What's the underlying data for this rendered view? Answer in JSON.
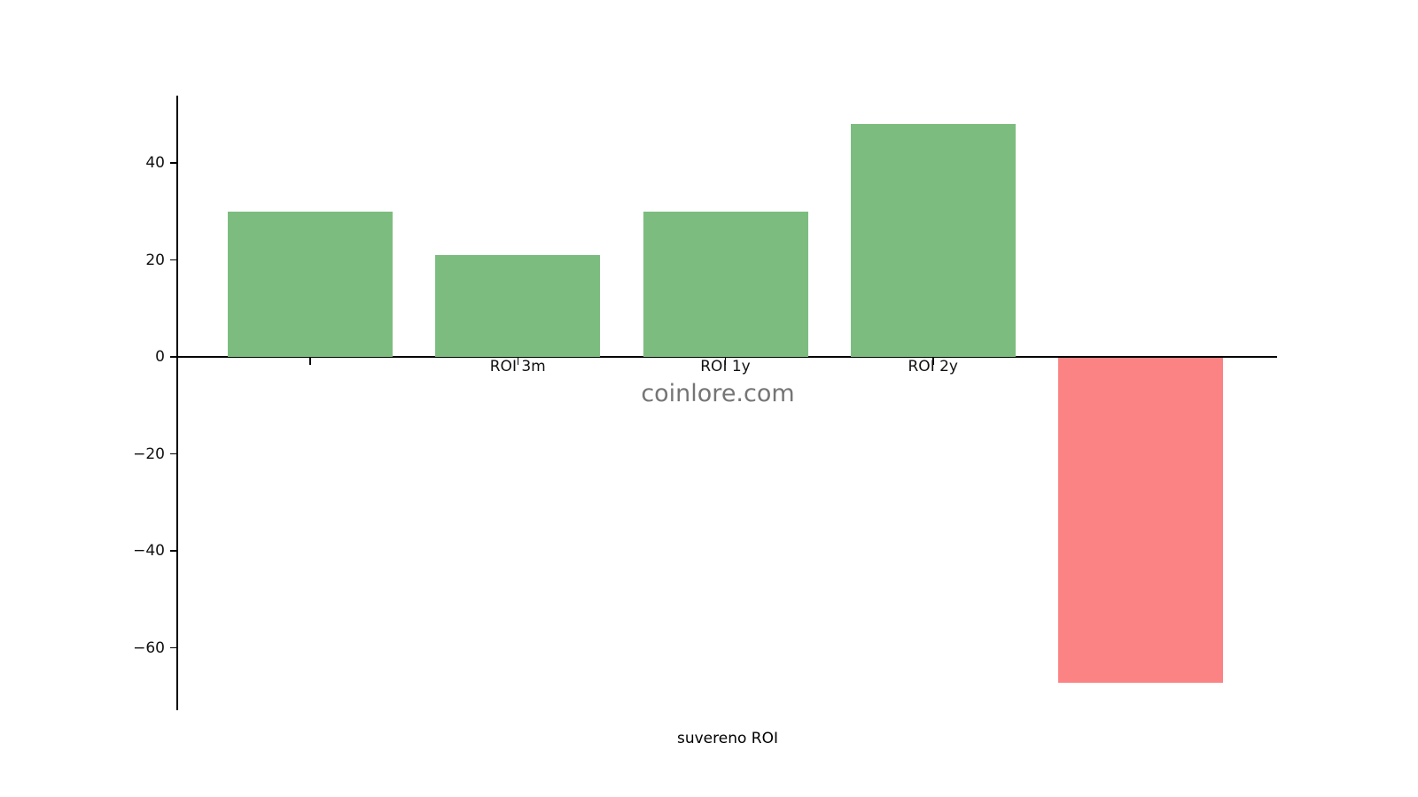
{
  "chart_data": {
    "type": "bar",
    "title": "",
    "xlabel": "suvereno ROI",
    "ylabel": "",
    "categories": [
      "",
      "ROI 3m",
      "ROI 1y",
      "ROI 2y",
      ""
    ],
    "values": [
      30,
      21,
      30,
      48,
      -67
    ],
    "bar_colors": [
      "#7cbd7f",
      "#7cbd7f",
      "#7cbd7f",
      "#7cbd7f",
      "#fc8383"
    ],
    "positive_color": "#7cbd7f",
    "negative_color": "#fc8383",
    "axis_color": "#000000",
    "ytick_values": [
      40,
      20,
      0,
      -20,
      -40,
      -60
    ],
    "ytick_labels": [
      "40",
      "20",
      "0",
      "−20",
      "−40",
      "−60"
    ],
    "ylim": [
      -73,
      54
    ],
    "grid": false,
    "legend": null,
    "watermark": "coinlore.com"
  }
}
